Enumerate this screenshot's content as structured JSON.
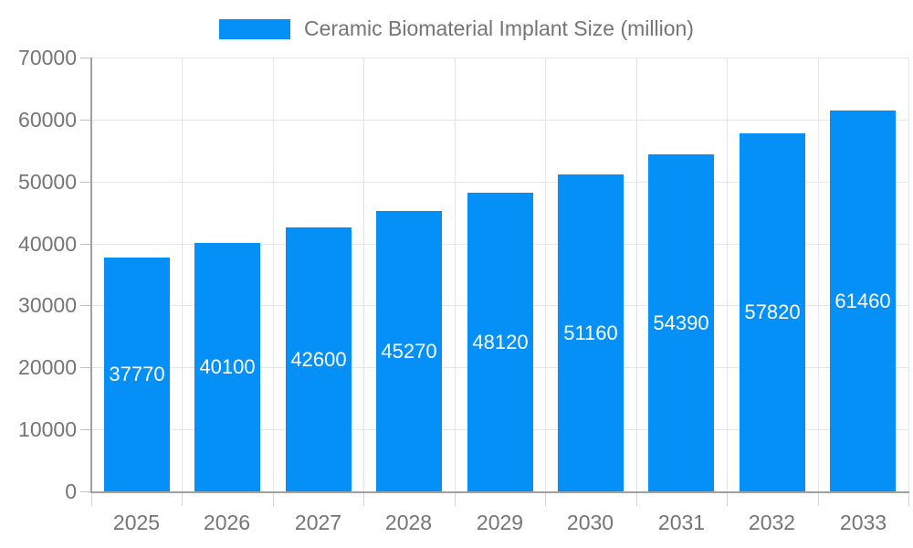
{
  "chart_data": {
    "type": "bar",
    "title": "Ceramic Biomaterial Implant Size (million)",
    "categories": [
      "2025",
      "2026",
      "2027",
      "2028",
      "2029",
      "2030",
      "2031",
      "2032",
      "2033"
    ],
    "values": [
      37770,
      40100,
      42600,
      45270,
      48120,
      51160,
      54390,
      57820,
      61460
    ],
    "series": [
      {
        "name": "Ceramic Biomaterial Implant Size (million)",
        "values": [
          37770,
          40100,
          42600,
          45270,
          48120,
          51160,
          54390,
          57820,
          61460
        ]
      }
    ],
    "xlabel": "",
    "ylabel": "",
    "ylim": [
      0,
      70000
    ],
    "y_ticks": [
      0,
      10000,
      20000,
      30000,
      40000,
      50000,
      60000,
      70000
    ],
    "grid": true,
    "legend_position": "top",
    "value_labels": "inside-center",
    "colors": {
      "bar": "#0590F8",
      "bar_label": "#FFFFFF",
      "axis_text": "#757575",
      "gridline": "#E6E6E6",
      "axis_line": "#A0A0A0",
      "background": "#FFFFFF"
    }
  }
}
